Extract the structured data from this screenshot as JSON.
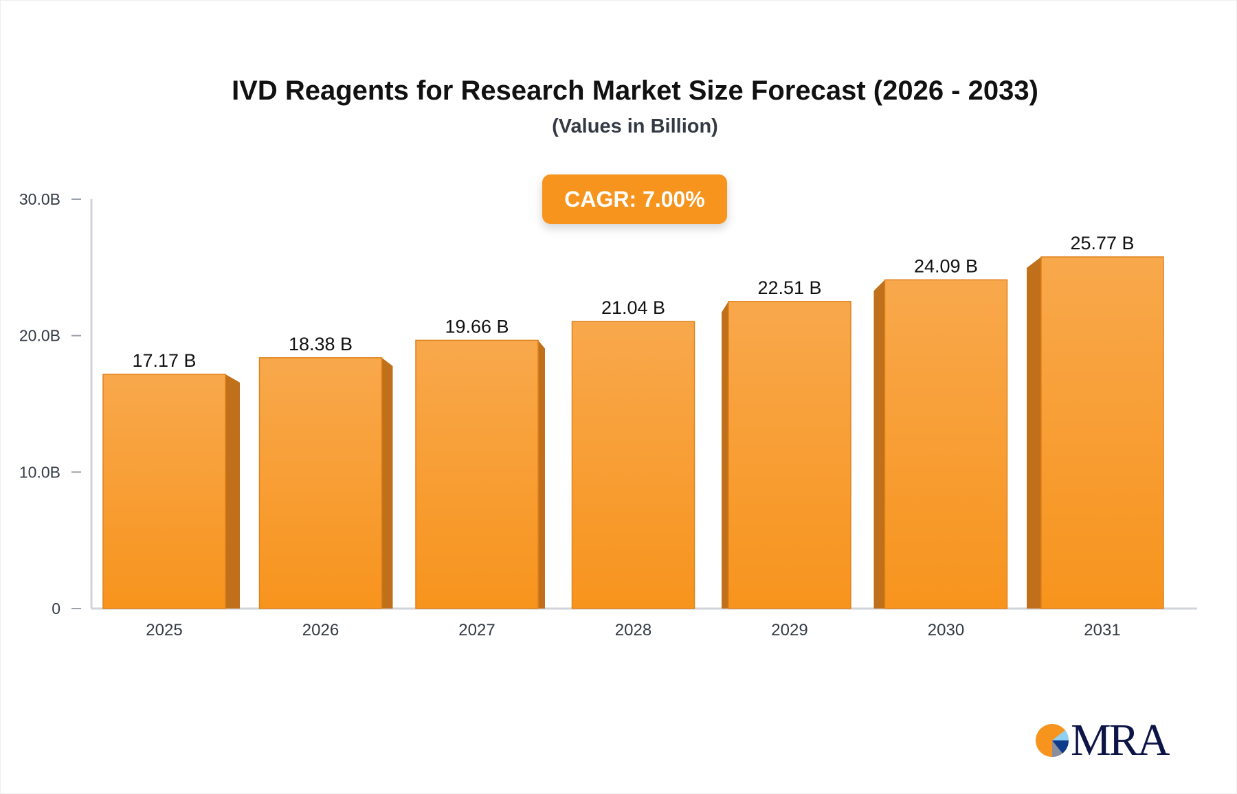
{
  "chart_data": {
    "type": "bar",
    "title": "IVD Reagents for Research Market Size Forecast (2026 - 2033)",
    "subtitle": "(Values in Billion)",
    "annotation": "CAGR: 7.00%",
    "categories": [
      "2025",
      "2026",
      "2027",
      "2028",
      "2029",
      "2030",
      "2031"
    ],
    "values": [
      17.17,
      18.38,
      19.66,
      21.04,
      22.51,
      24.09,
      25.77
    ],
    "data_labels": [
      "17.17 B",
      "18.38 B",
      "19.66 B",
      "21.04 B",
      "22.51 B",
      "24.09 B",
      "25.77 B"
    ],
    "ylim": [
      0,
      30
    ],
    "yticks": [
      0,
      10,
      20,
      30
    ],
    "ytick_labels": [
      "0",
      "10.0B",
      "20.0B",
      "30.0B"
    ],
    "grid": false,
    "legend": "none",
    "colors": {
      "bar": "#f7941d",
      "bar_top": "#f8a84c",
      "bar_side": "#c0701a",
      "axis": "#d0d3da",
      "text": "#333a44"
    }
  },
  "logo": {
    "text": "MRA"
  }
}
